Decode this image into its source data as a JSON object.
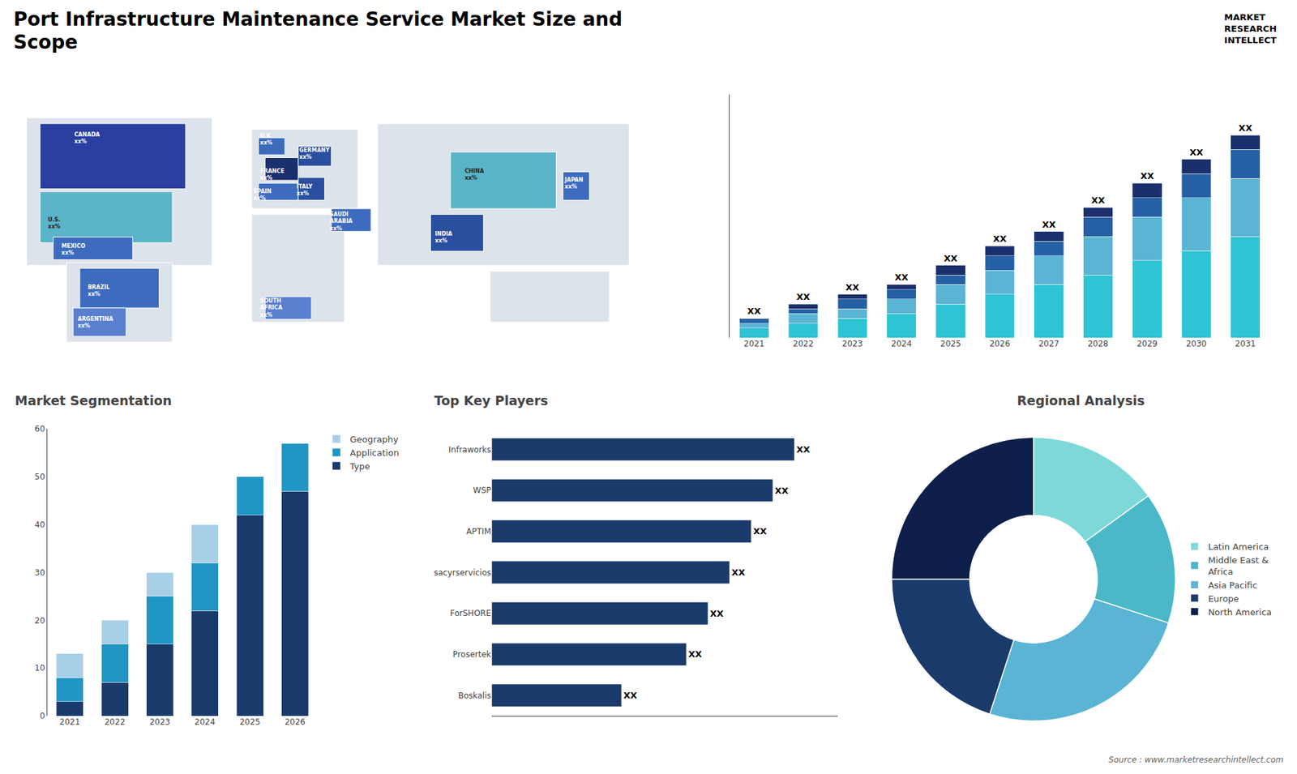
{
  "title": "Port Infrastructure Maintenance Service Market Size and\nScope",
  "annotations": [
    "MARKET\nRESEARCH\nINTELLECT",
    "Source : www.marketresearchintellect.com"
  ],
  "chart_data": [
    {
      "type": "map",
      "annotations": [
        "CANADA\nxx%",
        "U.S.\nxx%",
        "MEXICO\nxx%",
        "BRAZIL\nxx%",
        "ARGENTINA\nxx%",
        "U.K.\nxx%",
        "FRANCE\nxx%",
        "SPAIN\nxx%",
        "GERMANY\nxx%",
        "ITALY\nxx%",
        "SAUDI\nARABIA\nxx%",
        "SOUTH\nAFRICA\nxx%",
        "CHINA\nxx%",
        "INDIA\nxx%",
        "JAPAN\nxx%"
      ],
      "colors": [
        "#2a3f9f",
        "#5ab4c8",
        "#3d6cbf",
        "#3d6cbf",
        "#5a7fcf",
        "#3d6cbf",
        "#1a2f6b",
        "#3d6cbf",
        "#2a4f9f",
        "#2a4f9f",
        "#3d6cbf",
        "#5a7fcf",
        "#5ab4c8",
        "#2a4f9f",
        "#3d6cbf"
      ]
    },
    {
      "type": "bar",
      "stacked": true,
      "categories": [
        "2021",
        "2022",
        "2023",
        "2024",
        "2025",
        "2026",
        "2027",
        "2028",
        "2029",
        "2030",
        "2031"
      ],
      "series": [
        {
          "color": "#2ec4d4",
          "values": [
            2,
            3,
            4,
            5,
            7,
            9,
            11,
            13,
            16,
            18,
            21
          ]
        },
        {
          "color": "#5ab4d4",
          "values": [
            1,
            2,
            2,
            3,
            4,
            5,
            6,
            8,
            9,
            11,
            12
          ]
        },
        {
          "color": "#2660a4",
          "values": [
            1,
            1,
            2,
            2,
            2,
            3,
            3,
            4,
            4,
            5,
            6
          ]
        },
        {
          "color": "#1a2f6b",
          "values": [
            0,
            1,
            1,
            1,
            2,
            2,
            2,
            2,
            3,
            3,
            3
          ]
        }
      ],
      "value_labels": [
        "XX",
        "XX",
        "XX",
        "XX",
        "XX",
        "XX",
        "XX",
        "XX",
        "XX",
        "XX",
        "XX"
      ],
      "ylim": [
        0,
        50.4
      ],
      "tick_labels": "x",
      "grid": false
    },
    {
      "type": "bar",
      "title": "Market Segmentation",
      "stacked": true,
      "categories": [
        "2021",
        "2022",
        "2023",
        "2024",
        "2025",
        "2026"
      ],
      "series": [
        {
          "name": "Type",
          "color": "#1a3a6b",
          "values": [
            3,
            7,
            15,
            22,
            42,
            47
          ]
        },
        {
          "name": "Application",
          "color": "#2196c4",
          "values": [
            5,
            8,
            10,
            10,
            8,
            10
          ]
        },
        {
          "name": "Geography",
          "color": "#a8cfe8",
          "values": [
            5,
            5,
            5,
            8,
            0,
            0
          ]
        }
      ],
      "ylim": [
        0,
        60
      ],
      "yticks": [
        0,
        10,
        20,
        30,
        40,
        50,
        60
      ],
      "legend": "upper right",
      "grid": false
    },
    {
      "type": "bar",
      "title": "Top Key Players",
      "orientation": "horizontal",
      "categories": [
        "Infraworks",
        "WSP",
        "APTIM",
        "sacyrservicios",
        "ForSHORE",
        "Prosertek",
        "Boskalis"
      ],
      "values": [
        7,
        6.5,
        6,
        5.5,
        5,
        4.5,
        3
      ],
      "value_labels": [
        "XX",
        "XX",
        "XX",
        "XX",
        "XX",
        "XX",
        "XX"
      ],
      "color": "#1a3a6b",
      "xlim": [
        0,
        8
      ],
      "tick_labels": "y",
      "grid": false
    },
    {
      "type": "pie",
      "title": "Regional Analysis",
      "categories": [
        "Latin America",
        "Middle East &\nAfrica",
        "Asia Pacific",
        "Europe",
        "North America"
      ],
      "values": [
        15,
        15,
        25,
        20,
        25
      ],
      "colors": [
        "#7fd8d8",
        "#4ab8c8",
        "#5ab4d4",
        "#1a3a6b",
        "#0d1f4a"
      ],
      "legend": "right"
    }
  ]
}
